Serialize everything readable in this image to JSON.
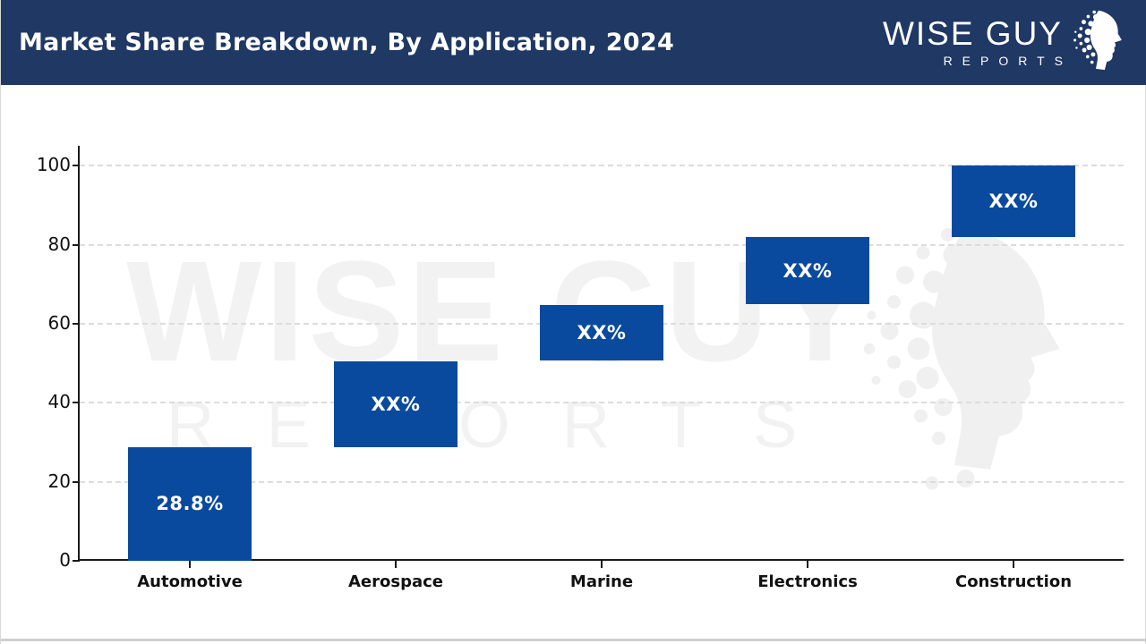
{
  "header": {
    "title": "Market Share Breakdown, By Application, 2024",
    "bg_color": "#1f3864",
    "logo": {
      "line1": "WISE GUY",
      "line2": "REPORTS"
    }
  },
  "watermark": {
    "line1": "WISE GUY",
    "line2": "REPORTS"
  },
  "chart_data": {
    "type": "bar",
    "subtype": "waterfall",
    "title": "Market Share Breakdown, By Application, 2024",
    "categories": [
      "Automotive",
      "Aerospace",
      "Marine",
      "Electronics",
      "Construction"
    ],
    "segments": [
      {
        "category": "Automotive",
        "start": 0,
        "end": 28.8,
        "label": "28.8%"
      },
      {
        "category": "Aerospace",
        "start": 28.8,
        "end": 50.5,
        "label": "XX%"
      },
      {
        "category": "Marine",
        "start": 50.7,
        "end": 64.7,
        "label": "XX%"
      },
      {
        "category": "Electronics",
        "start": 65.0,
        "end": 81.9,
        "label": "XX%"
      },
      {
        "category": "Construction",
        "start": 82.0,
        "end": 100,
        "label": "XX%"
      }
    ],
    "y_ticks": [
      0,
      20,
      40,
      60,
      80,
      100
    ],
    "y_tick_labels": [
      "0",
      "20",
      "40",
      "60",
      "80",
      "100"
    ],
    "ylim": [
      0,
      100
    ],
    "xlabel": "",
    "ylabel": "",
    "bar_color": "#0a4a9e",
    "grid": "dashed horizontal",
    "legend": "none"
  }
}
